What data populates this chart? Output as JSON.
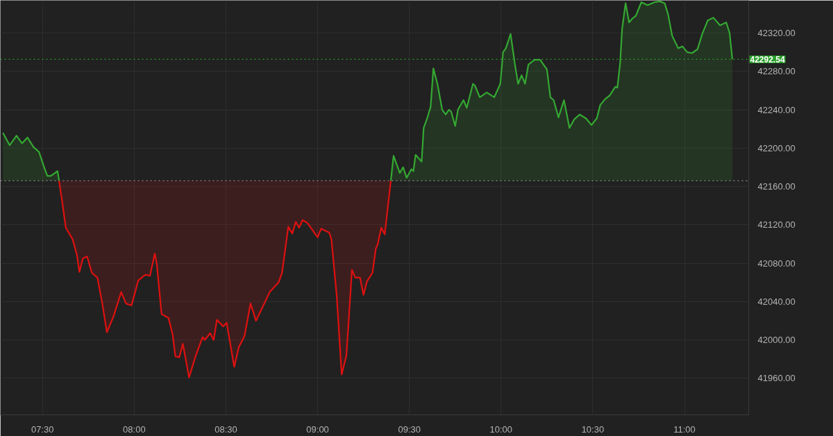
{
  "chart_data": {
    "type": "area",
    "x": [
      7.284,
      7.321,
      7.358,
      7.388,
      7.418,
      7.451,
      7.481,
      7.507,
      7.526,
      7.545,
      7.582,
      7.59,
      7.608,
      7.627,
      7.664,
      7.687,
      7.701,
      7.72,
      7.743,
      7.769,
      7.799,
      7.825,
      7.851,
      7.888,
      7.929,
      7.955,
      7.985,
      8.022,
      8.06,
      8.086,
      8.112,
      8.123,
      8.149,
      8.187,
      8.209,
      8.224,
      8.246,
      8.265,
      8.299,
      8.336,
      8.373,
      8.384,
      8.414,
      8.433,
      8.451,
      8.485,
      8.504,
      8.545,
      8.571,
      8.601,
      8.634,
      8.664,
      8.694,
      8.739,
      8.787,
      8.806,
      8.84,
      8.862,
      8.881,
      8.899,
      8.918,
      8.944,
      9.0,
      9.019,
      9.063,
      9.075,
      9.104,
      9.131,
      9.157,
      9.187,
      9.205,
      9.231,
      9.25,
      9.269,
      9.299,
      9.317,
      9.328,
      9.347,
      9.366,
      9.384,
      9.399,
      9.414,
      9.448,
      9.466,
      9.485,
      9.511,
      9.522,
      9.534,
      9.567,
      9.578,
      9.597,
      9.616,
      9.631,
      9.653,
      9.679,
      9.698,
      9.716,
      9.728,
      9.75,
      9.765,
      9.795,
      9.813,
      9.847,
      9.858,
      9.884,
      9.922,
      9.963,
      9.996,
      10.011,
      10.026,
      10.052,
      10.075,
      10.093,
      10.112,
      10.131,
      10.149,
      10.183,
      10.213,
      10.239,
      10.25,
      10.269,
      10.287,
      10.313,
      10.343,
      10.373,
      10.399,
      10.429,
      10.463,
      10.493,
      10.522,
      10.541,
      10.567,
      10.593,
      10.623,
      10.634,
      10.649,
      10.66,
      10.679,
      10.698,
      10.716,
      10.735,
      10.765,
      10.799,
      10.836,
      10.866,
      10.892,
      10.91,
      10.933,
      10.966,
      10.989,
      11.015,
      11.041,
      11.071,
      11.097,
      11.127,
      11.157,
      11.194,
      11.228,
      11.246,
      11.261
    ],
    "series": [
      {
        "color": "#34a832",
        "values": [
          42216,
          42203,
          42213,
          42205,
          42211,
          42201,
          42196,
          42181,
          42171,
          42171,
          42176,
          42166,
          null,
          null,
          null,
          null,
          null,
          null,
          null,
          null,
          null,
          null,
          null,
          null,
          null,
          null,
          null,
          null,
          null,
          null,
          null,
          null,
          null,
          null,
          null,
          null,
          null,
          null,
          null,
          null,
          null,
          null,
          null,
          null,
          null,
          null,
          null,
          null,
          null,
          null,
          null,
          null,
          null,
          null,
          null,
          null,
          null,
          null,
          null,
          null,
          null,
          null,
          null,
          null,
          null,
          null,
          null,
          null,
          null,
          null,
          null,
          null,
          null,
          null,
          null,
          null,
          null,
          null,
          null,
          null,
          42166,
          42192,
          42174,
          42180,
          42169,
          42178,
          42176,
          42193,
          42186,
          42221,
          42231,
          42243,
          42283,
          42267,
          42240,
          42235,
          42240,
          42238,
          42223,
          42240,
          42250,
          42242,
          42267,
          42265,
          42253,
          42258,
          42253,
          42267,
          42300,
          42304,
          42319,
          42288,
          42267,
          42276,
          42267,
          42287,
          42292,
          42292,
          42285,
          42282,
          42253,
          42250,
          42232,
          42250,
          42221,
          42230,
          42235,
          42231,
          42224,
          42231,
          42245,
          42251,
          42255,
          42264,
          42263,
          42288,
          42324,
          42351,
          42331,
          42335,
          42338,
          42352,
          42349,
          42352,
          42353,
          42351,
          42340,
          42317,
          42304,
          42306,
          42300,
          42299,
          42303,
          42319,
          42333,
          42336,
          42328,
          42331,
          42320,
          42292.54
        ]
      },
      {
        "type": "line",
        "color": "#e01010",
        "values": [
          null,
          null,
          null,
          null,
          null,
          null,
          null,
          null,
          null,
          null,
          null,
          42166,
          42143,
          42117,
          42105,
          42089,
          42071,
          42085,
          42087,
          42070,
          42065,
          42039,
          42008,
          42025,
          42050,
          42038,
          42036,
          42062,
          42068,
          42067,
          42090,
          42079,
          42027,
          42023,
          42006,
          41983,
          41982,
          41996,
          41961,
          41984,
          42003,
          42000,
          42007,
          42000,
          42021,
          42014,
          42018,
          41972,
          41993,
          42004,
          42038,
          42020,
          42032,
          42050,
          42060,
          42070,
          42118,
          42111,
          42123,
          42117,
          42125,
          42122,
          42107,
          42116,
          42112,
          42105,
          42046,
          41964,
          41984,
          42073,
          42065,
          42065,
          42047,
          42061,
          42070,
          42095,
          42100,
          42117,
          42110,
          42141,
          42166,
          null,
          null,
          null,
          null,
          null,
          null,
          null,
          null,
          null,
          null,
          null,
          null,
          null,
          null,
          null,
          null,
          null,
          null,
          null,
          null,
          null,
          null,
          null,
          null,
          null,
          null,
          null,
          null,
          null,
          null,
          null,
          null,
          null,
          null,
          null,
          null,
          null,
          null,
          null,
          null,
          null,
          null,
          null,
          null,
          null,
          null,
          null,
          null,
          null,
          null,
          null,
          null,
          null,
          null,
          null,
          null,
          null,
          null,
          null,
          null,
          null,
          null,
          null,
          null,
          null,
          null,
          null,
          null,
          null,
          null,
          null,
          null,
          null,
          null,
          null,
          null,
          null,
          null,
          null
        ],
        "lower": [
          null,
          null,
          null,
          null,
          null,
          null,
          null,
          null,
          null,
          null,
          null,
          42166,
          42143,
          42117,
          42105,
          42089,
          42071,
          42085,
          42087,
          42070,
          42065,
          42039,
          42008,
          42025,
          42050,
          42038,
          42036,
          42062,
          42068,
          42067,
          42090,
          42079,
          42027,
          42023,
          42006,
          41983,
          41982,
          41996,
          41961,
          41984,
          42003,
          42000,
          42007,
          42000,
          42021,
          42014,
          42018,
          41972,
          41993,
          42004,
          42038,
          42020,
          42032,
          42050,
          42060,
          42070,
          42118,
          42111,
          42123,
          42117,
          42125,
          42122,
          42107,
          42116,
          42112,
          42105,
          42046,
          41964,
          41984,
          42073,
          42065,
          42065,
          42047,
          42061,
          42070,
          42095,
          42100,
          42117,
          42110,
          42141,
          42166,
          null,
          null,
          null,
          null,
          null,
          null,
          null,
          null,
          null,
          null,
          null,
          null,
          null,
          null,
          null,
          null,
          null,
          null,
          null,
          null,
          null,
          null,
          null,
          null,
          null,
          null,
          null,
          null,
          null,
          null,
          null,
          null,
          null,
          null,
          null,
          null,
          null,
          null,
          null,
          null,
          null,
          null,
          null,
          null,
          null,
          null,
          null,
          null,
          null,
          null,
          null,
          null,
          null,
          null,
          null,
          null,
          null,
          null,
          null,
          null,
          null,
          null,
          null,
          null,
          null,
          null,
          null,
          null,
          null,
          null,
          null,
          null,
          null,
          null,
          null,
          null,
          null,
          null,
          null
        ],
        "upper": [
          null,
          null,
          null,
          null,
          null,
          null,
          null,
          null,
          null,
          null,
          null,
          42166,
          42166,
          42166,
          42166,
          42166,
          42166,
          42166,
          42166,
          42166,
          42166,
          42166,
          42166,
          42166,
          42166,
          42166,
          42166,
          42166,
          42166,
          42166,
          42166,
          42166,
          42166,
          42166,
          42166,
          42166,
          42166,
          42166,
          42166,
          42166,
          42166,
          42166,
          42166,
          42166,
          42166,
          42166,
          42166,
          42166,
          42166,
          42166,
          42166,
          42166,
          42166,
          42166,
          42166,
          42166,
          42166,
          42166,
          42166,
          42166,
          42166,
          42166,
          42166,
          42166,
          42166,
          42166,
          42166,
          42166,
          42166,
          42166,
          42166,
          42166,
          42166,
          42166,
          42166,
          42166,
          42166,
          42166,
          42166,
          42166,
          42166,
          null,
          null,
          null,
          null,
          null,
          null,
          null,
          null,
          null,
          null,
          null,
          null,
          null,
          null,
          null,
          null,
          null,
          null,
          null,
          null,
          null,
          null,
          null,
          null,
          null,
          null,
          null,
          null,
          null,
          null,
          null,
          null,
          null,
          null,
          null,
          null,
          null,
          null,
          null,
          null,
          null,
          null,
          null,
          null,
          null,
          null,
          null,
          null,
          null,
          null,
          null,
          null,
          null,
          null,
          null,
          null,
          null,
          null,
          null,
          null,
          null,
          null,
          null,
          null,
          null,
          null,
          null,
          null,
          null,
          null,
          null,
          null,
          null,
          null,
          null,
          null,
          null,
          null,
          null
        ]
      }
    ],
    "xlim": [
      7.27,
      11.35
    ],
    "xticks": [
      {
        "value": 7.5,
        "label": "07:30"
      },
      {
        "value": 8,
        "label": "08:00"
      },
      {
        "value": 8.5,
        "label": "08:30"
      },
      {
        "value": 9,
        "label": "09:00"
      },
      {
        "value": 9.5,
        "label": "09:30"
      },
      {
        "value": 10,
        "label": "10:00"
      },
      {
        "value": 10.5,
        "label": "10:30"
      },
      {
        "value": 11,
        "label": "11:00"
      }
    ],
    "ylim": [
      41922,
      42354
    ],
    "yticks": [
      {
        "value": 41960,
        "label": "41960.00"
      },
      {
        "value": 42000,
        "label": "42000.00"
      },
      {
        "value": 42040,
        "label": "42040.00"
      },
      {
        "value": 42080,
        "label": "42080.00"
      },
      {
        "value": 42120,
        "label": "42120.00"
      },
      {
        "value": 42160,
        "label": "42160.00"
      },
      {
        "value": 42200,
        "label": "42200.00"
      },
      {
        "value": 42240,
        "label": "42240.00"
      },
      {
        "value": 42280,
        "label": "42280.00"
      },
      {
        "value": 42320,
        "label": "42320.00"
      }
    ],
    "ref_lines": [
      {
        "axis": "y",
        "value": 42166,
        "line_style": "dotted",
        "color": "#8c8c8c"
      },
      {
        "axis": "y",
        "value": 42292.54,
        "label": "42292.54",
        "line_style": "dotted",
        "color": "#2a9d2a"
      }
    ],
    "grid": true
  }
}
